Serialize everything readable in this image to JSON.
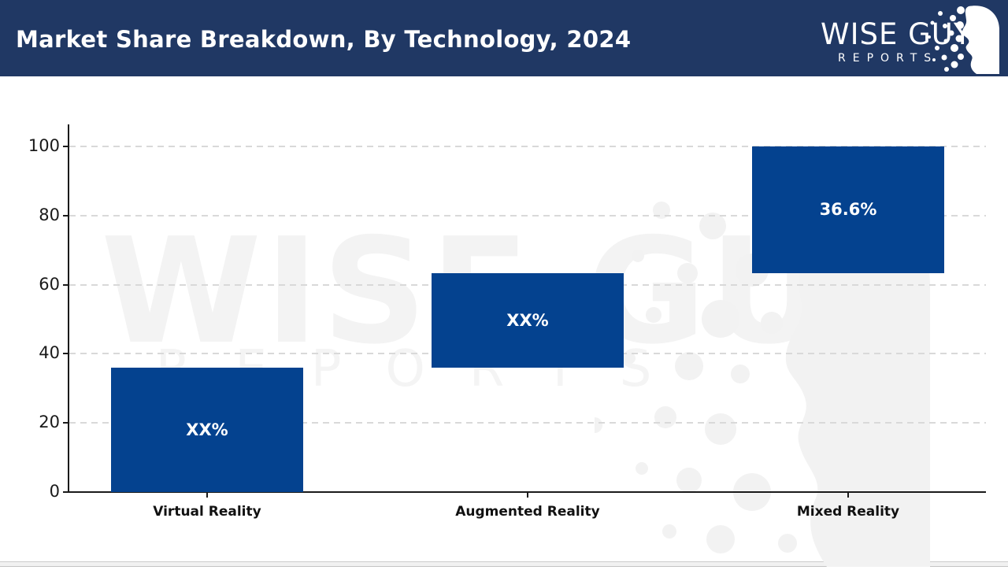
{
  "header": {
    "title": "Market Share Breakdown, By Technology, 2024",
    "logo": {
      "line1": "WISE GUY",
      "line2": "REPORTS"
    }
  },
  "watermark": {
    "line1": "WISE GUY",
    "line2": "REPORTS"
  },
  "chart_data": {
    "type": "bar",
    "subtype": "floating-waterfall",
    "title": "Market Share Breakdown, By Technology, 2024",
    "categories": [
      "Virtual Reality",
      "Augmented Reality",
      "Mixed Reality"
    ],
    "segments": [
      {
        "category": "Virtual Reality",
        "start": 0,
        "end": 36,
        "label": "XX%"
      },
      {
        "category": "Augmented Reality",
        "start": 36,
        "end": 63.4,
        "label": "XX%"
      },
      {
        "category": "Mixed Reality",
        "start": 63.4,
        "end": 100,
        "label": "36.6%"
      }
    ],
    "yticks": [
      0,
      20,
      40,
      60,
      80,
      100
    ],
    "ylim": [
      0,
      107
    ],
    "xlabel": "",
    "ylabel": "",
    "grid": "horizontal-dashed",
    "legend": "none",
    "colors": {
      "bar": "#04428f",
      "bar_label": "#ffffff",
      "grid": "#d9d9d9",
      "axis": "#1a1a1a",
      "header_bg": "#203864",
      "header_text": "#ffffff",
      "watermark": "#f3f3f3"
    }
  }
}
